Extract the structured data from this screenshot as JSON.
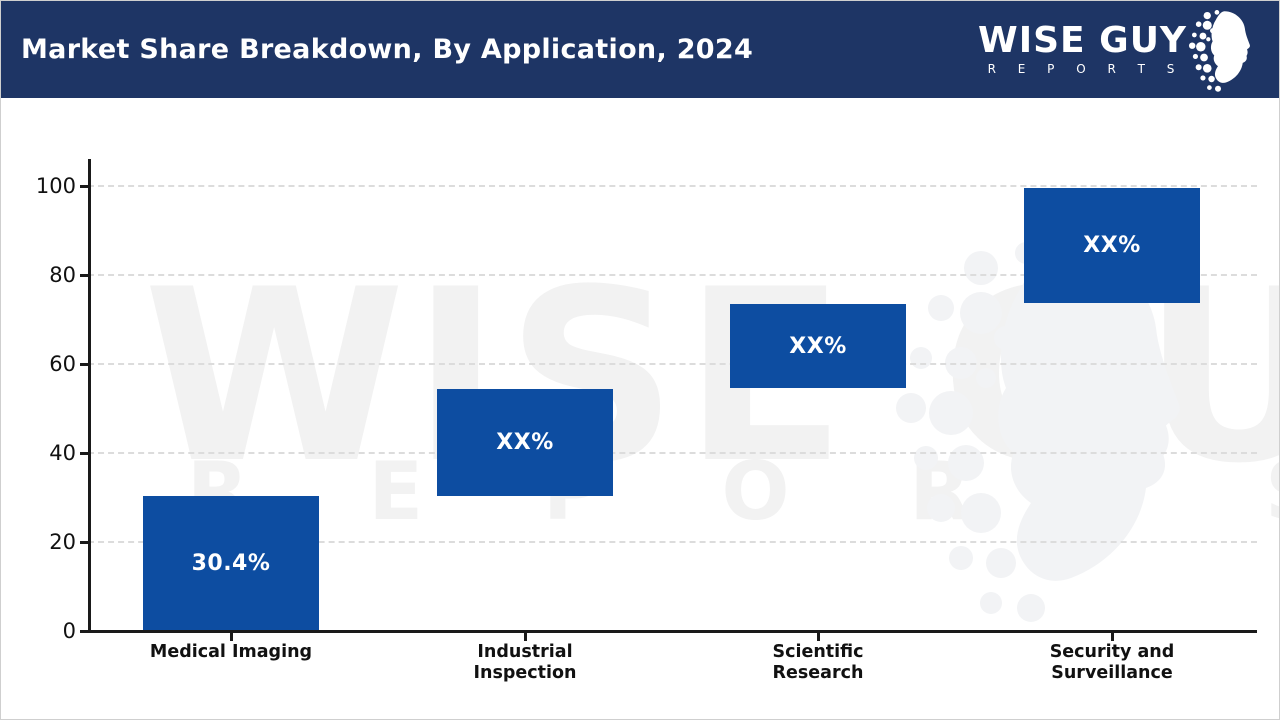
{
  "header": {
    "title": "Market Share Breakdown, By Application, 2024",
    "bg_color": "#1e3565",
    "logo": {
      "line1": "WISE GUY",
      "line2": "R E P O R T S"
    }
  },
  "watermark": {
    "line1": "WISE GUY",
    "line2": "R E P O R T S"
  },
  "chart_data": {
    "type": "bar",
    "subtype": "waterfall",
    "title": "Market Share Breakdown, By Application, 2024",
    "categories": [
      "Medical Imaging",
      "Industrial Inspection",
      "Scientific Research",
      "Security and Surveillance"
    ],
    "category_lines": [
      [
        "Medical Imaging"
      ],
      [
        "Industrial",
        "Inspection"
      ],
      [
        "Scientific",
        "Research"
      ],
      [
        "Security and",
        "Surveillance"
      ]
    ],
    "segments": [
      {
        "category": "Medical Imaging",
        "start": 0,
        "end": 30.4,
        "label": "30.4%"
      },
      {
        "category": "Industrial Inspection",
        "start": 30.4,
        "end": 54.4,
        "label": "XX%"
      },
      {
        "category": "Scientific Research",
        "start": 54.5,
        "end": 73.5,
        "label": "XX%"
      },
      {
        "category": "Security and Surveillance",
        "start": 73.8,
        "end": 99.6,
        "label": "XX%"
      }
    ],
    "ylim": [
      0,
      100
    ],
    "yticks": [
      0,
      20,
      40,
      60,
      80,
      100
    ],
    "xlabel": "",
    "ylabel": "",
    "grid": "horizontal-dashed",
    "legend": "none",
    "bar_color": "#0d4da1",
    "bar_label_color": "#ffffff",
    "axis_color": "#1a1a1a"
  }
}
